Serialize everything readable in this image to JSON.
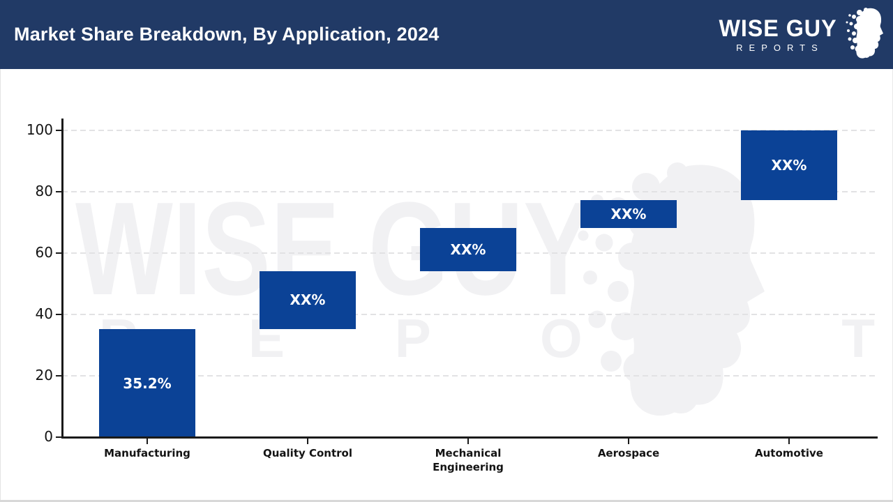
{
  "header": {
    "title": "Market Share Breakdown, By Application, 2024"
  },
  "brand": {
    "line1": "WISE GUY",
    "line2": "REPORTS"
  },
  "watermark": {
    "line1": "WISE GUY",
    "line2": "R E P O R T S"
  },
  "chart_data": {
    "type": "bar",
    "subtype": "waterfall",
    "title": "Market Share Breakdown, By Application, 2024",
    "xlabel": "",
    "ylabel": "",
    "categories": [
      "Manufacturing",
      "Quality Control",
      "Mechanical\nEngineering",
      "Aerospace",
      "Automotive"
    ],
    "segments": [
      {
        "category": "Manufacturing",
        "start": 0,
        "end": 35.2,
        "label": "35.2%"
      },
      {
        "category": "Quality Control",
        "start": 35.2,
        "end": 54.2,
        "label": "XX%"
      },
      {
        "category": "Mechanical Engineering",
        "start": 54.2,
        "end": 68.1,
        "label": "XX%"
      },
      {
        "category": "Aerospace",
        "start": 68.1,
        "end": 77.3,
        "label": "XX%"
      },
      {
        "category": "Automotive",
        "start": 77.3,
        "end": 100,
        "label": "XX%"
      }
    ],
    "yticks": [
      0,
      20,
      40,
      60,
      80,
      100
    ],
    "ylim": [
      0,
      104
    ],
    "grid": true,
    "legend": false,
    "bar_color": "#0b4296",
    "axis_color": "#1a1a1a",
    "grid_color": "#e2e2e4",
    "header_color": "#213a66",
    "watermark_color": "#f1f1f3"
  }
}
